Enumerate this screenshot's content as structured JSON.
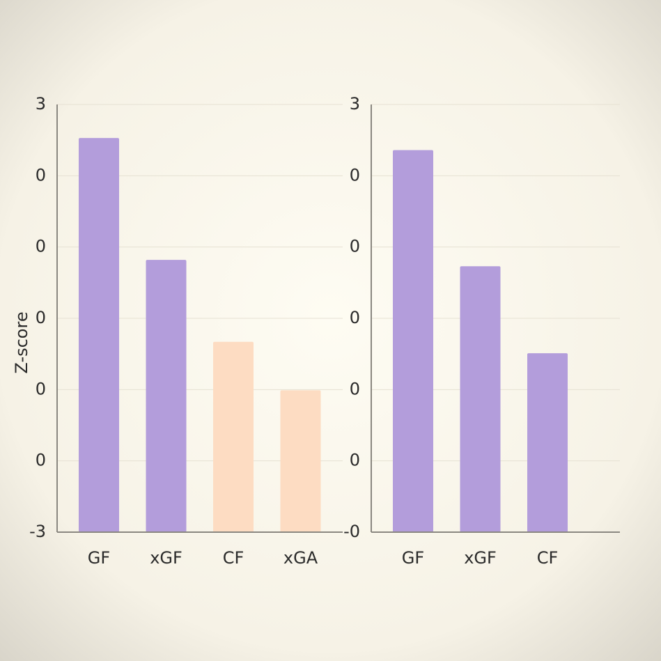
{
  "chart_data": [
    {
      "type": "bar",
      "y_label": "Z-score",
      "categories": [
        "GF",
        "xGF",
        "CF",
        "xGA"
      ],
      "values": [
        2.53,
        0.82,
        -0.33,
        -1.01
      ],
      "colors": [
        "#b39ddb",
        "#b39ddb",
        "#fddcc2",
        "#fddcc2"
      ],
      "ylim": [
        -3,
        3
      ],
      "yticks": [
        {
          "value": -3,
          "label": "-3"
        },
        {
          "value": -2,
          "label": "0"
        },
        {
          "value": -1,
          "label": "0"
        },
        0,
        {
          "value": 1,
          "label": "0"
        },
        {
          "value": 2,
          "label": "0"
        },
        3
      ],
      "grid": true
    },
    {
      "type": "bar",
      "categories": [
        "GF",
        "xGF",
        "CF"
      ],
      "values": [
        2.36,
        0.73,
        -0.49
      ],
      "colors": [
        "#b39ddb",
        "#b39ddb",
        "#b39ddb"
      ],
      "ylim": [
        -3,
        3
      ],
      "yticks": [
        {
          "value": -3,
          "label": "-0"
        },
        {
          "value": -2,
          "label": "0"
        },
        {
          "value": -1,
          "label": "0"
        },
        0,
        {
          "value": 1,
          "label": "0"
        },
        {
          "value": 2,
          "label": "0"
        },
        3
      ],
      "grid": true
    }
  ]
}
